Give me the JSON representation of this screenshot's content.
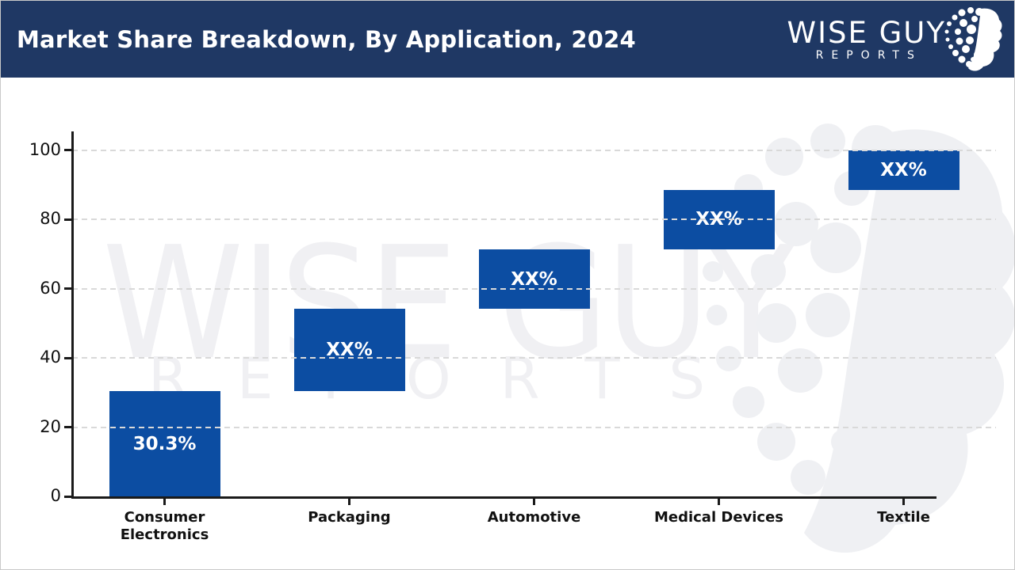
{
  "header": {
    "title": "Market Share Breakdown, By Application, 2024",
    "background_color": "#1f3864",
    "logo": {
      "line1": "WISE GUY",
      "line2": "REPORTS"
    }
  },
  "watermark": {
    "line1": "WISE GUY",
    "line2": "REPORTS"
  },
  "chart_data": {
    "type": "bar",
    "subtype": "waterfall",
    "title": "Market Share Breakdown, By Application, 2024",
    "categories": [
      "Consumer Electronics",
      "Packaging",
      "Automotive",
      "Medical Devices",
      "Textile"
    ],
    "bars": [
      {
        "category": "Consumer Electronics",
        "start": 0,
        "end": 30.3,
        "label": "30.3%"
      },
      {
        "category": "Packaging",
        "start": 30.3,
        "end": 54.1,
        "label": "XX%"
      },
      {
        "category": "Automotive",
        "start": 54.1,
        "end": 71.3,
        "label": "XX%"
      },
      {
        "category": "Medical Devices",
        "start": 71.3,
        "end": 88.5,
        "label": "XX%"
      },
      {
        "category": "Textile",
        "start": 88.5,
        "end": 100,
        "label": "XX%"
      }
    ],
    "yticks": [
      0,
      20,
      40,
      60,
      80,
      100
    ],
    "ylim": [
      0,
      100
    ],
    "xlabel": "",
    "ylabel": "",
    "grid": "horizontal-dashed",
    "legend": "none",
    "bar_color": "#0c4da2",
    "bar_label_color": "#ffffff",
    "grid_color": "#d9d9d9",
    "axis_color": "#1a1a1a"
  }
}
